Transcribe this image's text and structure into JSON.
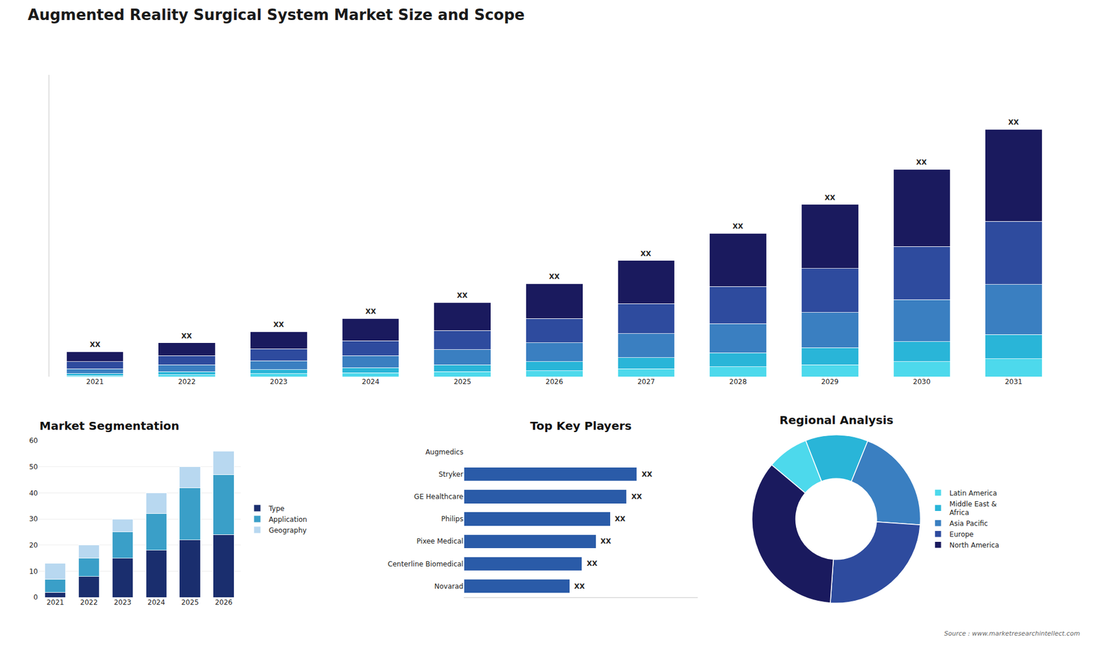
{
  "title": "Augmented Reality Surgical System Market Size and Scope",
  "annotations": [
    {
      "text": "Source : www.marketresearchintellect.com"
    }
  ],
  "chart_data": [
    {
      "type": "bar",
      "stacked": true,
      "categories": [
        "2021",
        "2022",
        "2023",
        "2024",
        "2025",
        "2026",
        "2027",
        "2028",
        "2029",
        "2030",
        "2031"
      ],
      "series": [
        {
          "name": "Latin America",
          "color": "#4dd9ec",
          "values": [
            0.1,
            0.2,
            0.3,
            0.4,
            0.5,
            0.6,
            0.8,
            1.0,
            1.2,
            1.5,
            1.8
          ]
        },
        {
          "name": "Middle East & Africa",
          "color": "#29b5d8",
          "values": [
            0.2,
            0.3,
            0.4,
            0.5,
            0.7,
            0.9,
            1.1,
            1.4,
            1.7,
            2.0,
            2.4
          ]
        },
        {
          "name": "Asia Pacific",
          "color": "#3a7fc1",
          "values": [
            0.5,
            0.7,
            0.9,
            1.2,
            1.5,
            1.9,
            2.4,
            2.9,
            3.5,
            4.2,
            5.0
          ]
        },
        {
          "name": "Europe",
          "color": "#2e4b9e",
          "values": [
            0.7,
            0.9,
            1.2,
            1.5,
            1.9,
            2.4,
            3.0,
            3.7,
            4.4,
            5.3,
            6.3
          ]
        },
        {
          "name": "North America",
          "color": "#1a1a5e",
          "values": [
            1.0,
            1.3,
            1.7,
            2.2,
            2.8,
            3.5,
            4.3,
            5.3,
            6.4,
            7.7,
            9.2
          ]
        }
      ],
      "ylim": [
        0,
        30.134
      ],
      "tick_labels": "x",
      "grid": false,
      "annotations": [
        {
          "category": "2021",
          "text": "XX"
        },
        {
          "category": "2022",
          "text": "XX"
        },
        {
          "category": "2023",
          "text": "XX"
        },
        {
          "category": "2024",
          "text": "XX"
        },
        {
          "category": "2025",
          "text": "XX"
        },
        {
          "category": "2026",
          "text": "XX"
        },
        {
          "category": "2027",
          "text": "XX"
        },
        {
          "category": "2028",
          "text": "XX"
        },
        {
          "category": "2029",
          "text": "XX"
        },
        {
          "category": "2030",
          "text": "XX"
        },
        {
          "category": "2031",
          "text": "XX"
        }
      ]
    },
    {
      "type": "bar",
      "title": "Market Segmentation",
      "stacked": true,
      "categories": [
        "2021",
        "2022",
        "2023",
        "2024",
        "2025",
        "2026"
      ],
      "series": [
        {
          "name": "Type",
          "color": "#1a2e6e",
          "values": [
            2,
            8,
            15,
            18,
            22,
            24
          ]
        },
        {
          "name": "Application",
          "color": "#3a9fc8",
          "values": [
            5,
            7,
            10,
            14,
            20,
            23
          ]
        },
        {
          "name": "Geography",
          "color": "#b8d8f0",
          "values": [
            6,
            5,
            5,
            8,
            8,
            9
          ]
        }
      ],
      "ylim": [
        0,
        60
      ],
      "yticks": [
        0,
        10,
        20,
        30,
        40,
        50,
        60
      ],
      "grid": true,
      "legend": "right"
    },
    {
      "type": "bar",
      "title": "Top Key Players",
      "orientation": "horizontal",
      "categories": [
        "Augmedics",
        "Stryker",
        "GE Healthcare",
        "Philips",
        "Pixee Medical",
        "Centerline Biomedical",
        "Novarad"
      ],
      "values": [
        0,
        85,
        80,
        72,
        65,
        58,
        52
      ],
      "color": "#2a5ba8",
      "xlim": [
        0,
        115
      ],
      "tick_labels": "y",
      "grid": false,
      "annotations": [
        {
          "category": "Stryker",
          "text": "XX"
        },
        {
          "category": "GE Healthcare",
          "text": "XX"
        },
        {
          "category": "Philips",
          "text": "XX"
        },
        {
          "category": "Pixee Medical",
          "text": "XX"
        },
        {
          "category": "Centerline Biomedical",
          "text": "XX"
        },
        {
          "category": "Novarad",
          "text": "XX"
        }
      ]
    },
    {
      "type": "donut",
      "title": "Regional Analysis",
      "categories": [
        "Latin America",
        "Middle East &\nAfrica",
        "Asia Pacific",
        "Europe",
        "North America"
      ],
      "values": [
        8,
        12,
        20,
        25,
        35
      ],
      "colors": [
        "#4dd9ec",
        "#29b5d8",
        "#3a7fc1",
        "#2e4b9e",
        "#1a1a5e"
      ],
      "legend": "right"
    }
  ]
}
